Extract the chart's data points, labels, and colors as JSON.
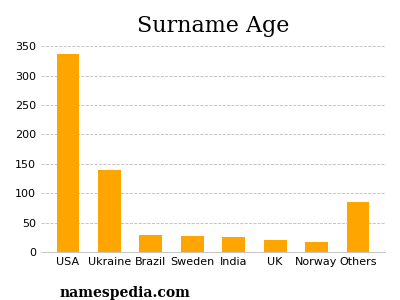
{
  "title": "Surname Age",
  "categories": [
    "USA",
    "Ukraine",
    "Brazil",
    "Sweden",
    "India",
    "UK",
    "Norway",
    "Others"
  ],
  "values": [
    336,
    139,
    29,
    27,
    25,
    21,
    17,
    86
  ],
  "bar_color": "#FFA500",
  "ylim": [
    0,
    360
  ],
  "yticks": [
    0,
    50,
    100,
    150,
    200,
    250,
    300,
    350
  ],
  "grid_color": "#bbbbbb",
  "background_color": "#ffffff",
  "title_fontsize": 16,
  "tick_fontsize": 8,
  "watermark": "namespedia.com",
  "watermark_fontsize": 10
}
